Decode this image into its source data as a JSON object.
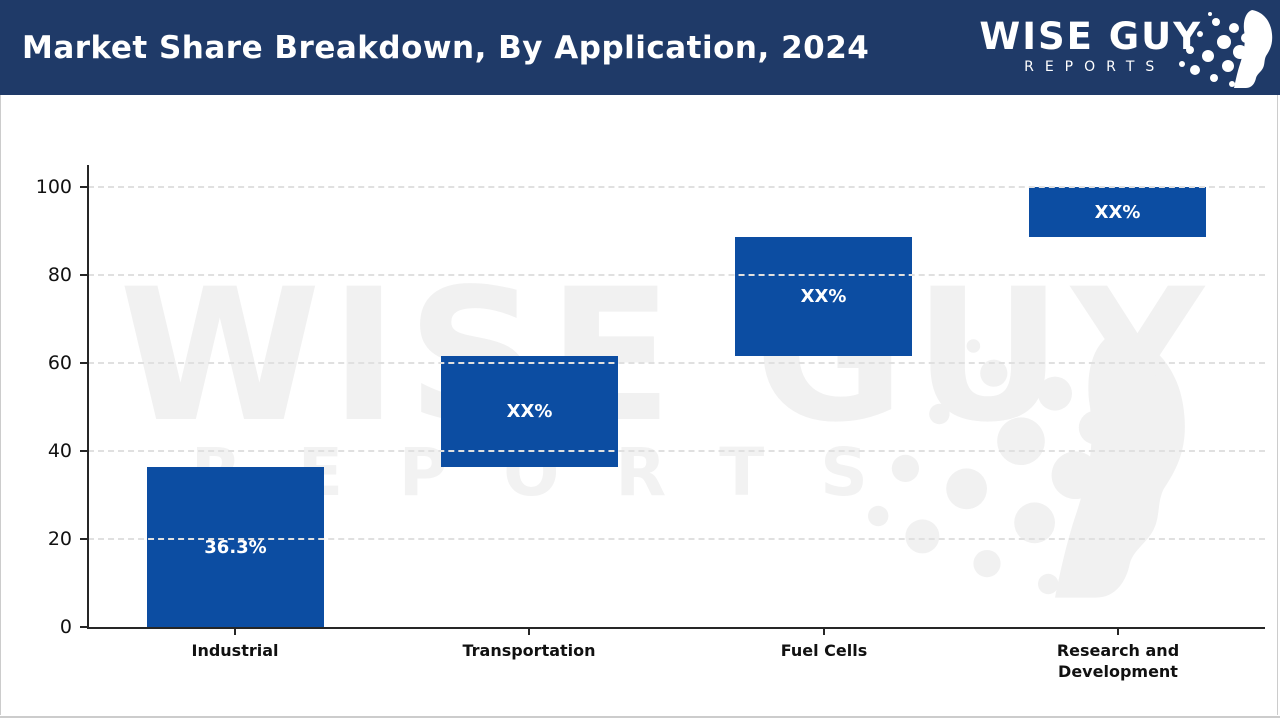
{
  "header": {
    "title": "Market Share Breakdown, By Application, 2024"
  },
  "brand": {
    "line1": "WISE GUY",
    "line2": "REPORTS"
  },
  "watermark": {
    "line1": "WISE GUY",
    "line2": "REPORTS"
  },
  "colors": {
    "header_bg": "#1f3a68",
    "bar": "#0c4da2",
    "bar_label": "#ffffff",
    "gridline": "#e0e0e0",
    "axis": "#262626",
    "watermark": "#f1f1f1",
    "frame_border": "#cccccc"
  },
  "chart_data": {
    "type": "bar",
    "subtype": "waterfall",
    "title": "Market Share Breakdown, By Application, 2024",
    "xlabel": "",
    "ylabel": "",
    "categories": [
      "Industrial",
      "Transportation",
      "Fuel Cells",
      "Research and Development"
    ],
    "series": [
      {
        "name": "Market share (%)",
        "segments": [
          {
            "category": "Industrial",
            "start": 0,
            "end": 36.3,
            "label": "36.3%"
          },
          {
            "category": "Transportation",
            "start": 36.3,
            "end": 61.5,
            "label": "XX%"
          },
          {
            "category": "Fuel Cells",
            "start": 61.5,
            "end": 88.6,
            "label": "XX%"
          },
          {
            "category": "Research and Development",
            "start": 88.6,
            "end": 100,
            "label": "XX%"
          }
        ]
      }
    ],
    "ylim": [
      0,
      100
    ],
    "yticks": [
      0,
      20,
      40,
      60,
      80,
      100
    ],
    "grid": "horizontal dashed, drawn over bars",
    "legend": "none",
    "bar_color": "#0c4da2",
    "value_label_color": "#ffffff"
  }
}
